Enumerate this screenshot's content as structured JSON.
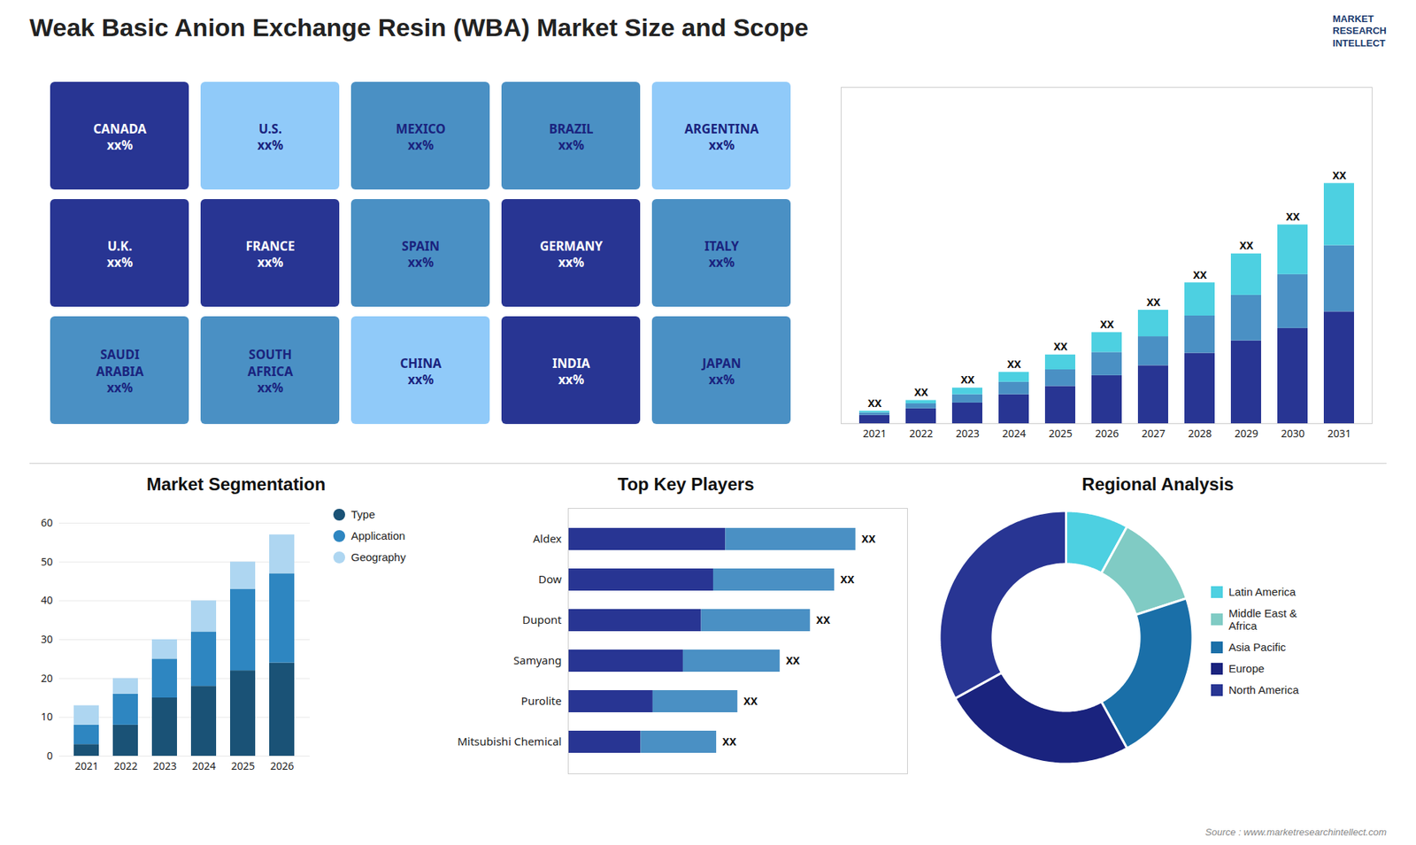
{
  "title": "Weak Basic Anion Exchange Resin (WBA) Market Size and Scope",
  "annotations": [
    "MARKET\nRESEARCH\nINTELLECT",
    "Source : www.marketresearchintellect.com"
  ],
  "chart_data": [
    {
      "type": "map",
      "regions": [
        {
          "name": "CANADA",
          "label": "xx%",
          "color": "#283593"
        },
        {
          "name": "U.S.",
          "label": "xx%",
          "color": "#90caf9"
        },
        {
          "name": "MEXICO",
          "label": "xx%",
          "color": "#4a90c4"
        },
        {
          "name": "BRAZIL",
          "label": "xx%",
          "color": "#4a90c4"
        },
        {
          "name": "ARGENTINA",
          "label": "xx%",
          "color": "#90caf9"
        },
        {
          "name": "U.K.",
          "label": "xx%",
          "color": "#283593"
        },
        {
          "name": "FRANCE",
          "label": "xx%",
          "color": "#283593"
        },
        {
          "name": "SPAIN",
          "label": "xx%",
          "color": "#4a90c4"
        },
        {
          "name": "GERMANY",
          "label": "xx%",
          "color": "#283593"
        },
        {
          "name": "ITALY",
          "label": "xx%",
          "color": "#4a90c4"
        },
        {
          "name": "SAUDI\nARABIA",
          "label": "xx%",
          "color": "#4a90c4"
        },
        {
          "name": "SOUTH\nAFRICA",
          "label": "xx%",
          "color": "#4a90c4"
        },
        {
          "name": "CHINA",
          "label": "xx%",
          "color": "#90caf9"
        },
        {
          "name": "INDIA",
          "label": "xx%",
          "color": "#283593"
        },
        {
          "name": "JAPAN",
          "label": "xx%",
          "color": "#4a90c4"
        }
      ]
    },
    {
      "type": "bar",
      "stacked": true,
      "categories": [
        "2021",
        "2022",
        "2023",
        "2024",
        "2025",
        "2026",
        "2027",
        "2028",
        "2029",
        "2030",
        "2031"
      ],
      "series": [
        {
          "color": "#283593",
          "values": [
            1.0,
            1.8,
            2.5,
            3.5,
            4.5,
            5.8,
            7.0,
            8.5,
            10.0,
            11.5,
            13.5
          ]
        },
        {
          "color": "#4a90c4",
          "values": [
            0.3,
            0.6,
            1.0,
            1.5,
            2.0,
            2.8,
            3.5,
            4.5,
            5.5,
            6.5,
            8.0
          ]
        },
        {
          "color": "#4dd0e1",
          "values": [
            0.2,
            0.4,
            0.8,
            1.2,
            1.8,
            2.4,
            3.2,
            4.0,
            5.0,
            6.0,
            7.5
          ]
        }
      ],
      "total_labels": [
        "XX",
        "XX",
        "XX",
        "XX",
        "XX",
        "XX",
        "XX",
        "XX",
        "XX",
        "XX",
        "XX"
      ],
      "ylim": [
        0,
        40.6
      ],
      "tick_labels": "x",
      "grid": false
    },
    {
      "type": "bar",
      "title": "Market Segmentation",
      "stacked": true,
      "categories": [
        "2021",
        "2022",
        "2023",
        "2024",
        "2025",
        "2026"
      ],
      "series": [
        {
          "name": "Type",
          "color": "#1a5276",
          "values": [
            3,
            8,
            15,
            18,
            22,
            24
          ]
        },
        {
          "name": "Application",
          "color": "#2e86c1",
          "values": [
            5,
            8,
            10,
            14,
            21,
            23
          ]
        },
        {
          "name": "Geography",
          "color": "#aed6f1",
          "values": [
            5,
            4,
            5,
            8,
            7,
            10
          ]
        }
      ],
      "ylim": [
        0,
        60
      ],
      "yticks": [
        0,
        10,
        20,
        30,
        40,
        50,
        60
      ],
      "grid": true,
      "legend": "upper right"
    },
    {
      "type": "bar",
      "title": "Top Key Players",
      "orientation": "horizontal",
      "stacked": true,
      "categories": [
        "Aldex",
        "Dow",
        "Dupont",
        "Samyang",
        "Purolite",
        "Mitsubishi Chemical"
      ],
      "series": [
        {
          "color": "#283593",
          "values": [
            52,
            48,
            44,
            38,
            28,
            24
          ]
        },
        {
          "color": "#4a90c4",
          "values": [
            43,
            40,
            36,
            32,
            28,
            25
          ]
        }
      ],
      "total_labels": [
        "XX",
        "XX",
        "XX",
        "XX",
        "XX",
        "XX"
      ],
      "xlim": [
        0,
        112.1
      ],
      "tick_labels": "y",
      "grid": false
    },
    {
      "type": "donut",
      "title": "Regional Analysis",
      "categories": [
        "Latin America",
        "Middle East &\nAfrica",
        "Asia Pacific",
        "Europe",
        "North America"
      ],
      "values": [
        8,
        12,
        22,
        25,
        33
      ],
      "colors": [
        "#4dd0e1",
        "#80cbc4",
        "#1a6fa8",
        "#1a237e",
        "#283593"
      ],
      "legend": "right"
    }
  ]
}
